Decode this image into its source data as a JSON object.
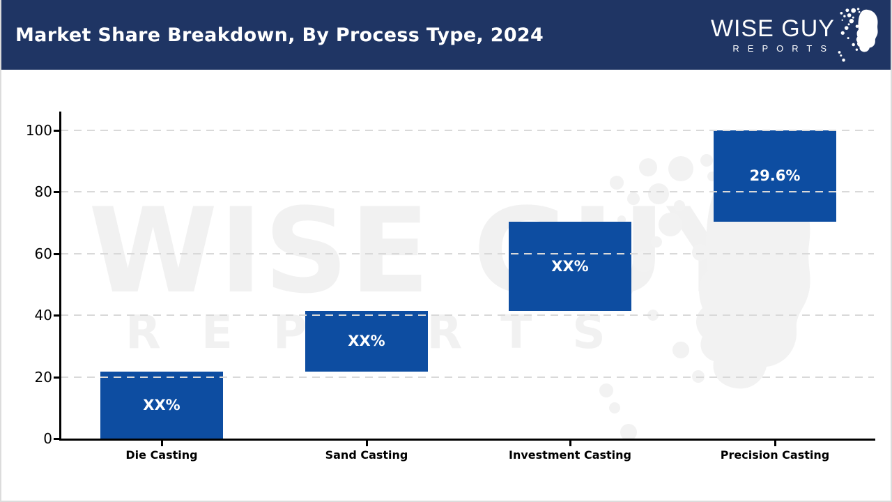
{
  "header": {
    "title": "Market Share Breakdown, By Process Type, 2024",
    "logo": {
      "line1": "WISE GUY",
      "line2": "REPORTS"
    }
  },
  "watermark": {
    "line1": "WISE GUY",
    "line2": "REPORTS"
  },
  "chart_data": {
    "type": "bar",
    "subtype": "floating-waterfall",
    "title": "Market Share Breakdown, By Process Type, 2024",
    "categories": [
      "Die Casting",
      "Sand Casting",
      "Investment Casting",
      "Precision Casting"
    ],
    "bars": [
      {
        "category": "Die Casting",
        "start": 0,
        "end": 21.8,
        "label": "XX%"
      },
      {
        "category": "Sand Casting",
        "start": 21.8,
        "end": 41.4,
        "label": "XX%"
      },
      {
        "category": "Investment Casting",
        "start": 41.4,
        "end": 70.4,
        "label": "XX%"
      },
      {
        "category": "Precision Casting",
        "start": 70.4,
        "end": 100,
        "label": "29.6%"
      }
    ],
    "ylim": [
      0,
      100
    ],
    "yticks": [
      0,
      20,
      40,
      60,
      80,
      100
    ],
    "grid": "horizontal dashed",
    "legend": "none",
    "xlabel": "",
    "ylabel": ""
  },
  "colors": {
    "header_bg": "#1f3564",
    "title_text": "#ffffff",
    "bar_fill": "#0d4da1",
    "bar_label": "#ffffff",
    "gridline": "#d9d9d9",
    "axis": "#000000",
    "watermark": "#f1f1f1",
    "logo_text": "#ffffff"
  }
}
